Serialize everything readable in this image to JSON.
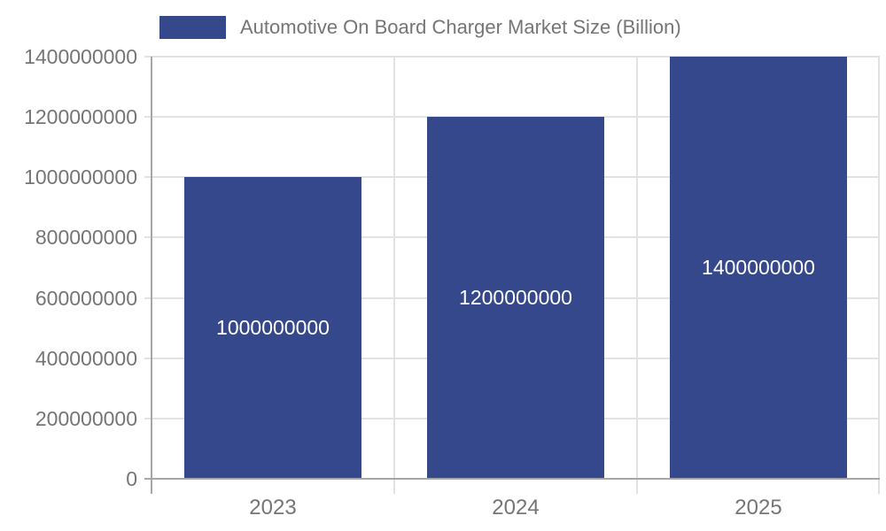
{
  "chart_data": {
    "type": "bar",
    "title": "Automotive On Board Charger Market Size (Billion)",
    "categories": [
      "2023",
      "2024",
      "2025"
    ],
    "values": [
      1000000000,
      1200000000,
      1400000000
    ],
    "bar_value_labels": [
      "1000000000",
      "1200000000",
      "1400000000"
    ],
    "xlabel": "",
    "ylabel": "",
    "ylim": [
      0,
      1400000000
    ],
    "yticks": [
      0,
      200000000,
      400000000,
      600000000,
      800000000,
      1000000000,
      1200000000,
      1400000000
    ],
    "grid": true,
    "legend_position": "top",
    "colors": {
      "bar": "#36488C",
      "axis_line": "#A6A6A6",
      "gridline": "#E2E2E2",
      "tick_text": "#757575",
      "bar_label_text": "#FFFFFF",
      "background": "#FFFFFF"
    }
  }
}
